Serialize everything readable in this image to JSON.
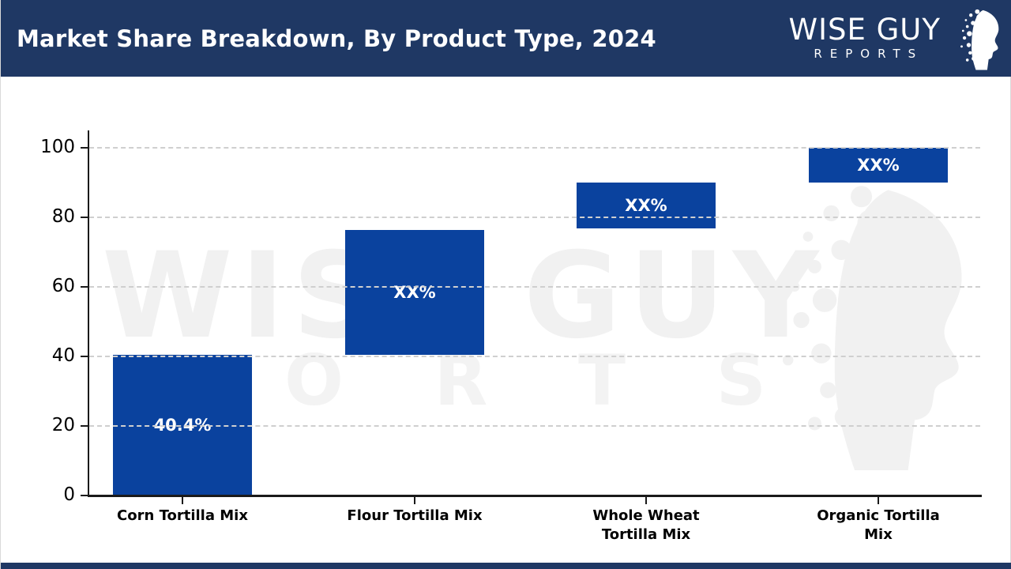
{
  "header": {
    "title": "Market Share Breakdown, By Product Type, 2024",
    "bg_color": "#1f3864",
    "logo": {
      "line1": "WISE GUY",
      "line2": "REPORTS"
    }
  },
  "watermark": {
    "line1": "WISE GUY",
    "line2": "P O R T S"
  },
  "colors": {
    "header_bg": "#1f3864",
    "bar_fill": "#0a429e",
    "bar_label_text": "#ffffff",
    "gridline": "#cfcfcf",
    "axis": "#1a1a1a",
    "watermark": "#f1f1f1",
    "footer_bg": "#1f3864"
  },
  "chart_data": {
    "type": "bar",
    "subtype": "waterfall-segments",
    "title": "Market Share Breakdown, By Product Type, 2024",
    "categories": [
      "Corn Tortilla Mix",
      "Flour Tortilla Mix",
      "Whole Wheat\nTortilla Mix",
      "Organic Tortilla\nMix"
    ],
    "segments": [
      {
        "category": "Corn Tortilla Mix",
        "start": 0,
        "end": 40.4,
        "label": "40.4%"
      },
      {
        "category": "Flour Tortilla Mix",
        "start": 40.4,
        "end": 76.4,
        "label": "XX%"
      },
      {
        "category": "Whole Wheat Tortilla Mix",
        "start": 76.8,
        "end": 89.9,
        "label": "XX%"
      },
      {
        "category": "Organic Tortilla Mix",
        "start": 90.0,
        "end": 100.0,
        "label": "XX%"
      }
    ],
    "y_ticks": [
      0,
      20,
      40,
      60,
      80,
      100
    ],
    "ylim": [
      0,
      100
    ],
    "xlabel": "",
    "ylabel": "",
    "grid": "horizontal-dashed-over-bars",
    "legend": "none"
  }
}
